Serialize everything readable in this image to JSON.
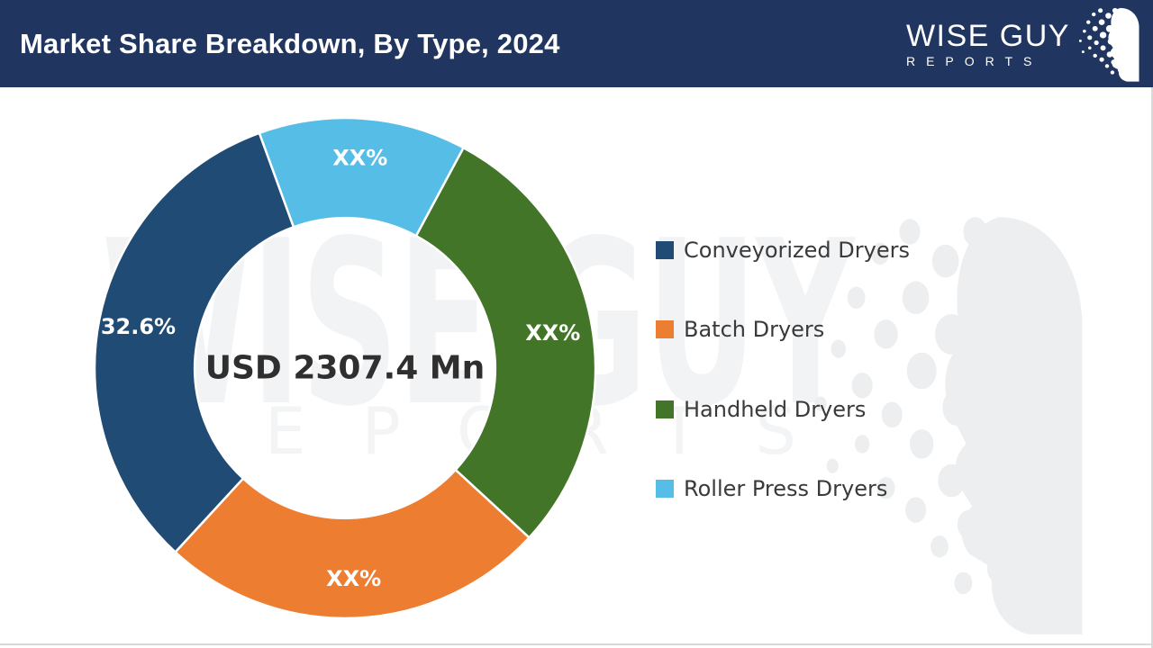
{
  "header": {
    "title": "Market Share Breakdown, By Type, 2024",
    "logo": {
      "wordmark": "WISE GUY",
      "subtext": "REPORTS"
    }
  },
  "chart_data": {
    "type": "donut",
    "title": "Market Share Breakdown, By Type, 2024",
    "center_label": "USD 2307.4 Mn",
    "start_angle_deg": 110,
    "direction": "counterclockwise",
    "inner_radius_ratio": 0.6,
    "legend_position": "right",
    "segments": [
      {
        "label": "Conveyorized Dryers",
        "value_pct": 32.6,
        "display_label": "32.6%",
        "color": "#1F4B74"
      },
      {
        "label": "Batch Dryers",
        "value_pct": 25.0,
        "display_label": "XX%",
        "color": "#ED7D31"
      },
      {
        "label": "Handheld Dryers",
        "value_pct": 29.0,
        "display_label": "XX%",
        "color": "#427528"
      },
      {
        "label": "Roller Press Dryers",
        "value_pct": 13.4,
        "display_label": "XX%",
        "color": "#55BDE6"
      }
    ]
  },
  "watermark": {
    "line1": "WISE GUY",
    "line2": "REPORTS"
  },
  "colors": {
    "header_bg": "#20355F",
    "title_text": "#FFFFFF",
    "center_text": "#2F2F2F",
    "legend_text": "#3A3A3A",
    "slice_label_text": "#FFFFFF",
    "border_line": "#D9D9D9",
    "watermark": "#F2F3F4",
    "background": "#FFFFFF"
  }
}
